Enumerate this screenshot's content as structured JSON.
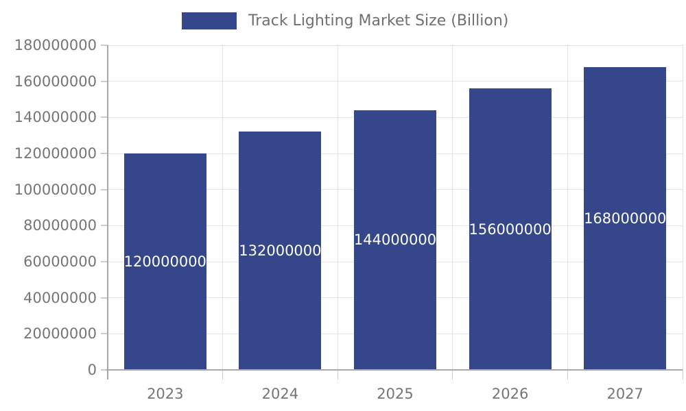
{
  "legend": {
    "label": "Track Lighting Market Size (Billion)"
  },
  "colors": {
    "bar": "#36468B",
    "grid": "#e3e3e3",
    "axis": "#a8a8a8",
    "tick": "#cccccc",
    "tick_text": "#757575",
    "legend_text": "#707070",
    "bar_label": "#ffffff"
  },
  "chart_data": {
    "type": "bar",
    "title": "Track Lighting Market Size (Billion)",
    "series_name": "Track Lighting Market Size (Billion)",
    "categories": [
      "2023",
      "2024",
      "2025",
      "2026",
      "2027"
    ],
    "values": [
      120000000,
      132000000,
      144000000,
      156000000,
      168000000
    ],
    "bar_labels": [
      "120000000",
      "132000000",
      "144000000",
      "156000000",
      "168000000"
    ],
    "ytick_labels": [
      "0",
      "20000000",
      "40000000",
      "60000000",
      "80000000",
      "100000000",
      "120000000",
      "140000000",
      "160000000",
      "180000000"
    ],
    "yticks": [
      0,
      20000000,
      40000000,
      60000000,
      80000000,
      100000000,
      120000000,
      140000000,
      160000000,
      180000000
    ],
    "ylim": [
      0,
      180000000
    ],
    "xlabel": "",
    "ylabel": "",
    "grid": true,
    "legend_position": "top-center",
    "bar_label_position": "inside-middle"
  }
}
